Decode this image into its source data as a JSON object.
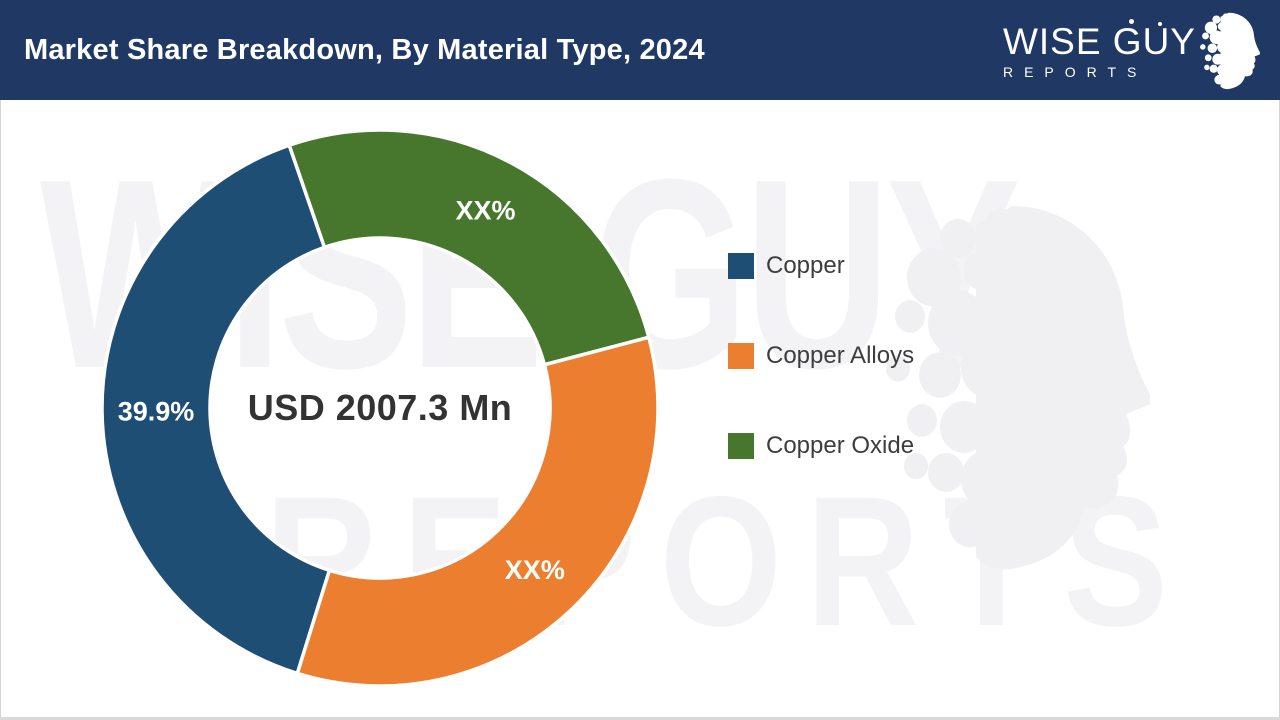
{
  "header": {
    "title": "Market Share Breakdown, By Material Type, 2024",
    "bg_color": "#1f3864",
    "logo": {
      "line1": "WISE GUY",
      "line2": "REPORTS"
    }
  },
  "watermark": {
    "line1": "WISE GUY",
    "line2": "REPORTS"
  },
  "chart_data": {
    "type": "pie",
    "subtype": "donut",
    "title": "Market Share Breakdown, By Material Type, 2024",
    "center_label": "USD 2007.3 Mn",
    "segments": [
      {
        "label": "Copper",
        "display_pct": "39.9%",
        "pct": 39.9,
        "color": "#1f4e74"
      },
      {
        "label": "Copper Alloys",
        "display_pct": "XX%",
        "pct": 33.9,
        "color": "#ec7e2f"
      },
      {
        "label": "Copper Oxide",
        "display_pct": "XX%",
        "pct": 26.2,
        "color": "#46772c"
      }
    ],
    "layout": {
      "start_angle_deg": 197.3,
      "draw_order": [
        0,
        2,
        1
      ],
      "donut_hole_ratio": 0.611,
      "legend_position": "right",
      "segment_gap_color": "#ffffff"
    }
  }
}
